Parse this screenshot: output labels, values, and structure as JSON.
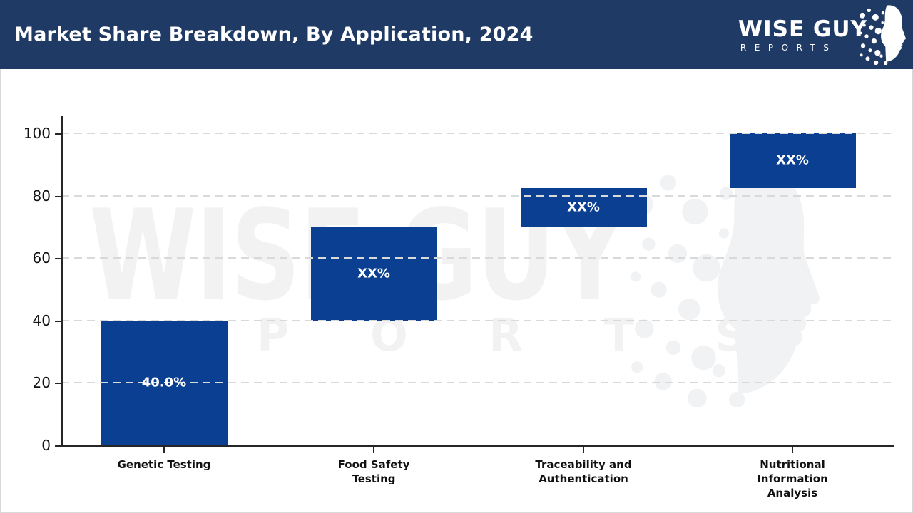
{
  "header": {
    "title": "Market Share Breakdown, By Application, 2024",
    "logo": {
      "line1": "WISE GUY",
      "line2": "REPORTS"
    }
  },
  "watermark": {
    "line1": "WISE GUY",
    "line2": "P O R T S"
  },
  "chart_data": {
    "type": "bar",
    "subtype": "floating-waterfall",
    "title": "Market Share Breakdown, By Application, 2024",
    "categories": [
      "Genetic Testing",
      "Food Safety Testing",
      "Traceability and Authentication",
      "Nutritional Information Analysis"
    ],
    "category_label_lines": [
      [
        "Genetic Testing"
      ],
      [
        "Food Safety",
        "Testing"
      ],
      [
        "Traceability and",
        "Authentication"
      ],
      [
        "Nutritional",
        "Information",
        "Analysis"
      ]
    ],
    "bars": [
      {
        "category": "Genetic Testing",
        "start": 0,
        "end": 40,
        "label": "40.0%"
      },
      {
        "category": "Food Safety Testing",
        "start": 40,
        "end": 70,
        "label": "XX%"
      },
      {
        "category": "Traceability and Authentication",
        "start": 70,
        "end": 82.5,
        "label": "XX%"
      },
      {
        "category": "Nutritional Information Analysis",
        "start": 82.5,
        "end": 100,
        "label": "XX%"
      }
    ],
    "xlabel": "",
    "ylabel": "",
    "ylim": [
      0,
      100
    ],
    "yticks": [
      0,
      20,
      40,
      60,
      80,
      100
    ],
    "grid": {
      "axis": "y",
      "style": "dashed",
      "values": [
        20,
        40,
        60,
        80,
        100
      ]
    },
    "legend": "none",
    "colors": {
      "bar": "#0a3f91",
      "header_bg": "#203a66",
      "axis": "#262626",
      "gridline": "#d9d9d9",
      "bar_label": "#ffffff",
      "watermark": "#f2f2f2"
    }
  }
}
